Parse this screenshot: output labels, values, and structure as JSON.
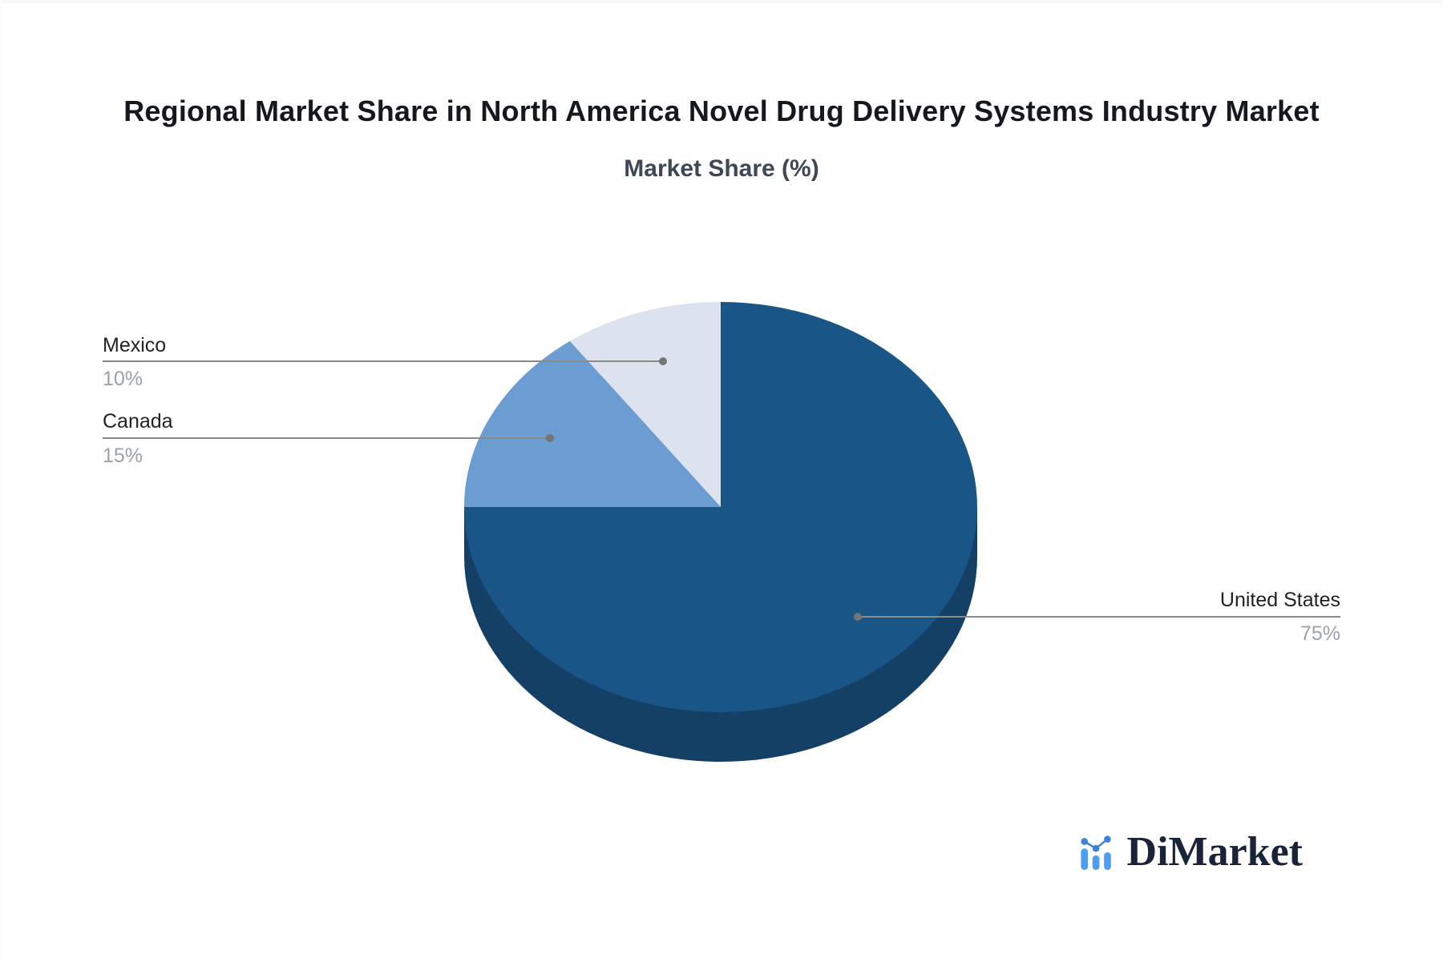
{
  "chart_data": {
    "type": "pie",
    "title": "Regional Market Share in North America Novel Drug Delivery Systems Industry Market",
    "subtitle": "Market Share (%)",
    "unit": "percent",
    "direction": "clockwise",
    "start_angle": "12-oclock",
    "effect": "3d",
    "legend_position": "callout-labels",
    "side_color": "#154066",
    "slices": [
      {
        "label": "United States",
        "value": 75,
        "value_text": "75%",
        "color": "#1A5588"
      },
      {
        "label": "Canada",
        "value": 15,
        "value_text": "15%",
        "color": "#6B9CD2"
      },
      {
        "label": "Mexico",
        "value": 10,
        "value_text": "10%",
        "color": "#DDE3EE"
      }
    ]
  },
  "branding": {
    "logo_text": "DiMarket"
  },
  "colors": {
    "title_text": "#15181E",
    "subtitle_text": "#3E4756",
    "callout_label_text": "#1F2126",
    "callout_value_text": "#9CA1A8",
    "leader_line": "#8A8A8A",
    "leader_dot": "#747474",
    "logo_text": "#1A2438",
    "logo_accent_bars": "#4D9EF0",
    "logo_accent_dots": "#3B82D8",
    "background": "#FFFFFF"
  }
}
